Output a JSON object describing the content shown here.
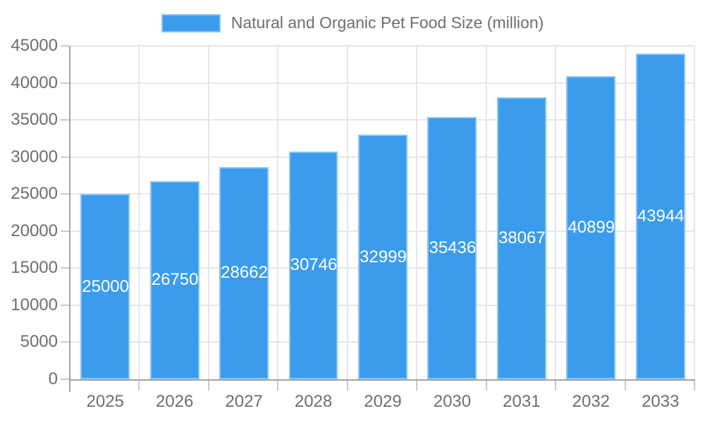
{
  "legend": {
    "label": "Natural and Organic Pet Food Size (million)"
  },
  "chart_data": {
    "type": "bar",
    "title": "Natural and Organic Pet Food Size (million)",
    "xlabel": "",
    "ylabel": "",
    "categories": [
      "2025",
      "2026",
      "2027",
      "2028",
      "2029",
      "2030",
      "2031",
      "2032",
      "2033"
    ],
    "values": [
      25000,
      26750,
      28662,
      30746,
      32999,
      35436,
      38067,
      40899,
      43944
    ],
    "value_labels": [
      "25000",
      "26750",
      "28662",
      "30746",
      "32999",
      "35436",
      "38067",
      "40899",
      "43944"
    ],
    "ylim": [
      0,
      45000
    ],
    "ytick_step": 5000,
    "ytick_labels": [
      "0",
      "5000",
      "10000",
      "15000",
      "20000",
      "25000",
      "30000",
      "35000",
      "40000",
      "45000"
    ],
    "grid": true,
    "legend_position": "top-center",
    "value_label_position": "inside-center",
    "colors": {
      "bar": "#3B9CEE",
      "bar_border": "#8AC4F3",
      "grid": "#E6E6E6",
      "axis": "#A3A3A3",
      "tick": "#C9C9C9",
      "text": "#6E6E6E",
      "value_label": "#FFFFFF",
      "background": "#FFFFFF"
    }
  }
}
